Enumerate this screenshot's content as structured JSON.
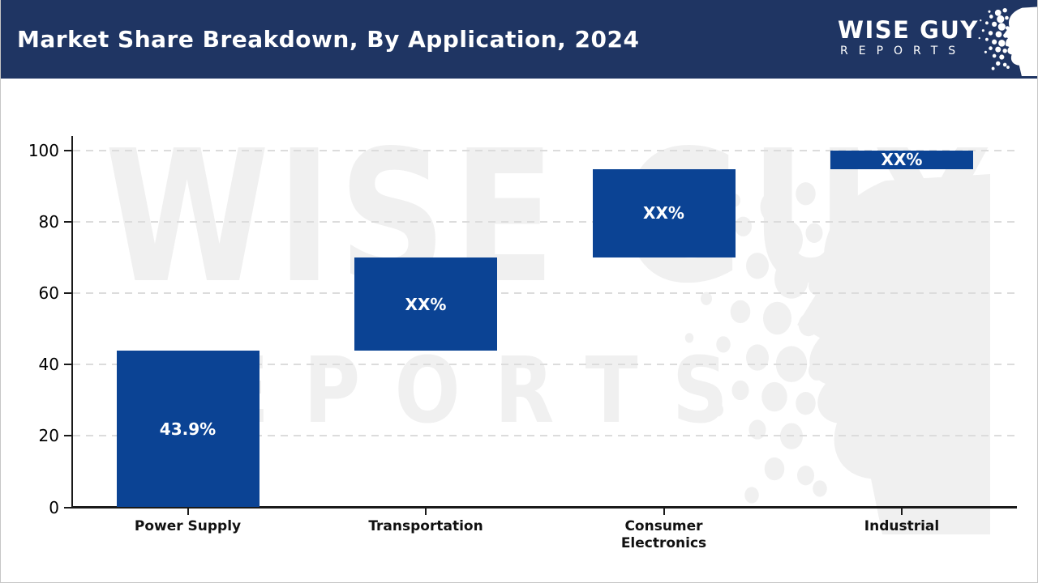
{
  "header": {
    "title": "Market Share Breakdown, By Application, 2024",
    "logo": {
      "line1": "WISE GUY",
      "line2": "REPORTS"
    }
  },
  "watermark": {
    "line1": "WISE GUY",
    "line2": "REPORTS"
  },
  "colors": {
    "header_navy": "#1f3563",
    "bar_blue": "#0b4394",
    "bar_label_white": "#ffffff",
    "gridline_gray": "#dcdcdc",
    "watermark_gray": "#f0f0f0",
    "axis_black": "#1a1a1a"
  },
  "chart_data": {
    "type": "bar",
    "subtype": "waterfall",
    "title": "Market Share Breakdown, By Application, 2024",
    "categories": [
      "Power Supply",
      "Transportation",
      "Consumer\nElectronics",
      "Industrial"
    ],
    "segments": [
      {
        "category": "Power Supply",
        "start": 0,
        "end": 43.9,
        "value": 43.9,
        "label": "43.9%"
      },
      {
        "category": "Transportation",
        "start": 43.9,
        "end": 70,
        "value": 26.1,
        "label": "XX%"
      },
      {
        "category": "Consumer Electronics",
        "start": 70,
        "end": 94.9,
        "value": 24.9,
        "label": "XX%"
      },
      {
        "category": "Industrial",
        "start": 94.9,
        "end": 100,
        "value": 5.1,
        "label": "XX%"
      }
    ],
    "yticks": [
      0,
      20,
      40,
      60,
      80,
      100
    ],
    "ylim": [
      0,
      105
    ],
    "xlabel": "",
    "ylabel": "",
    "grid": "horizontal-dashed",
    "legend": "none",
    "bar_color": "#0b4394",
    "bar_label_color": "#ffffff"
  }
}
